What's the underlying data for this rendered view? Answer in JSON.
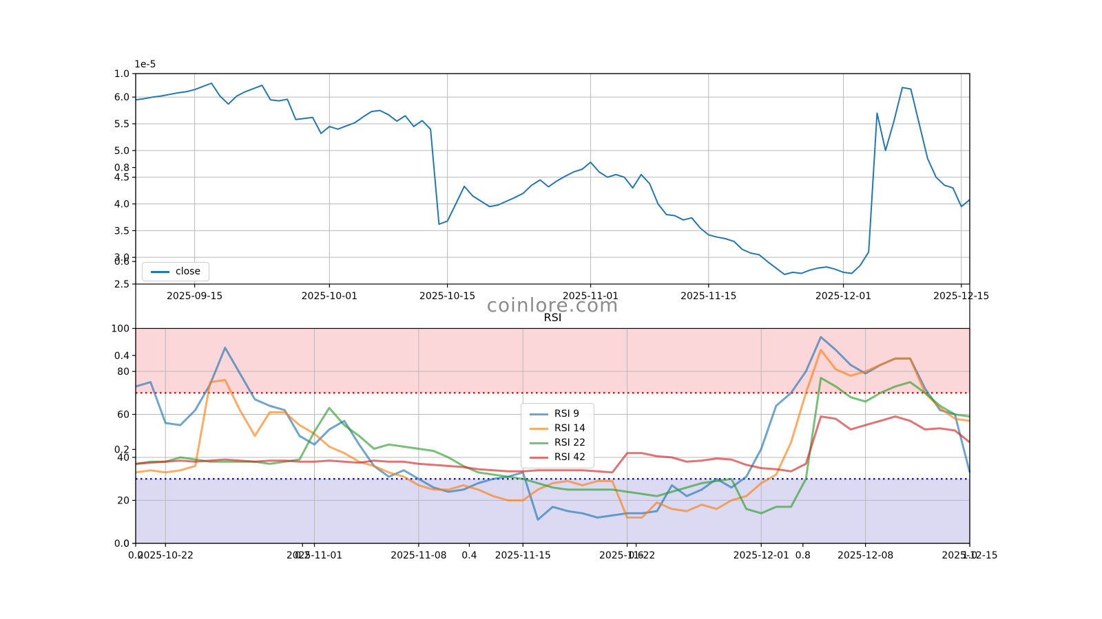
{
  "figure": {
    "watermark": "coinlore.com",
    "background": "#ffffff"
  },
  "price_panel": {
    "offset_label": "1e-5",
    "legend_label": "close",
    "y_tick_labels": [
      "6.0",
      "5.5",
      "5.0",
      "4.5",
      "4.0",
      "3.5",
      "3.0",
      "2.5"
    ],
    "x_tick_labels": [
      "2025-09-15",
      "2025-10-01",
      "2025-10-15",
      "2025-11-01",
      "2025-11-15",
      "2025-12-01",
      "2025-12-15"
    ]
  },
  "rsi_panel": {
    "title": "RSI",
    "legend": [
      "RSI 9",
      "RSI 14",
      "RSI 22",
      "RSI 42"
    ],
    "y_tick_labels": [
      "100",
      "80",
      "60",
      "40",
      "20",
      "0"
    ],
    "x_tick_labels": [
      "2025-10-22",
      "2025-11-01",
      "2025-11-08",
      "2025-11-15",
      "2025-11-22",
      "2025-12-01",
      "2025-12-08",
      "2025-12-15"
    ]
  },
  "overlay_axis": {
    "y_tick_labels": [
      "1.0",
      "0.8",
      "0.6",
      "0.4",
      "0.2",
      "0.0"
    ],
    "x_tick_labels": [
      "0.0",
      "0.2",
      "0.4",
      "0.6",
      "0.8",
      "1.0"
    ]
  },
  "colors": {
    "close_line": "#1f77b4",
    "rsi_9": "#1f77b4",
    "rsi_14": "#ff7f0e",
    "rsi_22": "#2ca02c",
    "rsi_42": "#d62728",
    "overbought_band": "#fbd7da",
    "oversold_band": "#dbdaf2",
    "overbought_line": "#e00000",
    "oversold_line": "#0000dd",
    "grid": "#b8b8b8",
    "spine": "#000000",
    "watermark": "#8c8c8c"
  },
  "chart_data": [
    {
      "type": "line",
      "title": "",
      "unit_offset": "1e-5",
      "x_start": "2025-09-08",
      "x_freq": "daily",
      "ylim": [
        2.5,
        6.44
      ],
      "yticks": [
        6.0,
        5.5,
        5.0,
        4.5,
        4.0,
        3.5,
        3.0,
        2.5
      ],
      "xticks": [
        "2025-09-15",
        "2025-10-01",
        "2025-10-15",
        "2025-11-01",
        "2025-11-15",
        "2025-12-01",
        "2025-12-15"
      ],
      "grid": true,
      "legend_position": "lower left",
      "series": [
        {
          "name": "close",
          "color": "#1f77b4",
          "values": [
            5.95,
            5.97,
            6.0,
            6.02,
            6.05,
            6.08,
            6.1,
            6.14,
            6.2,
            6.26,
            6.02,
            5.87,
            6.02,
            6.1,
            6.16,
            6.22,
            5.95,
            5.93,
            5.96,
            5.58,
            5.6,
            5.62,
            5.32,
            5.45,
            5.4,
            5.46,
            5.52,
            5.63,
            5.73,
            5.75,
            5.67,
            5.55,
            5.65,
            5.45,
            5.56,
            5.4,
            3.62,
            3.68,
            4.0,
            4.33,
            4.15,
            4.05,
            3.95,
            3.98,
            4.05,
            4.12,
            4.2,
            4.35,
            4.45,
            4.32,
            4.43,
            4.52,
            4.6,
            4.65,
            4.78,
            4.6,
            4.5,
            4.55,
            4.5,
            4.3,
            4.55,
            4.38,
            4.0,
            3.8,
            3.78,
            3.7,
            3.74,
            3.55,
            3.42,
            3.38,
            3.35,
            3.3,
            3.15,
            3.08,
            3.05,
            2.92,
            2.8,
            2.68,
            2.72,
            2.7,
            2.76,
            2.8,
            2.82,
            2.78,
            2.72,
            2.7,
            2.85,
            3.1,
            5.7,
            5.0,
            5.55,
            6.18,
            6.15,
            5.5,
            4.85,
            4.5,
            4.35,
            4.3,
            3.95,
            4.08
          ]
        }
      ]
    },
    {
      "type": "line",
      "title": "RSI",
      "x_start": "2025-10-20",
      "x_freq": "daily",
      "ylim": [
        0,
        100
      ],
      "yticks": [
        100,
        80,
        60,
        40,
        20,
        0
      ],
      "xticks": [
        "2025-10-22",
        "2025-11-01",
        "2025-11-08",
        "2025-11-15",
        "2025-11-22",
        "2025-12-01",
        "2025-12-08",
        "2025-12-15"
      ],
      "grid": true,
      "legend_position": "center",
      "bands": [
        {
          "name": "overbought",
          "range": [
            70,
            100
          ],
          "color": "#fbd7da"
        },
        {
          "name": "oversold",
          "range": [
            0,
            30
          ],
          "color": "#dbdaf2"
        }
      ],
      "hlines": [
        {
          "y": 70,
          "style": "dotted",
          "color": "#e00000"
        },
        {
          "y": 30,
          "style": "dotted",
          "color": "#0000dd"
        }
      ],
      "series": [
        {
          "name": "RSI 9",
          "color": "#1f77b4",
          "values": [
            73,
            75,
            56,
            55,
            62,
            74,
            91,
            79,
            67,
            64,
            62,
            50,
            46,
            53,
            57,
            46,
            36,
            31,
            34,
            30,
            26,
            24,
            25,
            28,
            30,
            31,
            33,
            11,
            17,
            15,
            14,
            12,
            13,
            14,
            14,
            15,
            27,
            22,
            25,
            30,
            26,
            31,
            44,
            64,
            70,
            80,
            96,
            90,
            83,
            79,
            83,
            86,
            86,
            72,
            62,
            60,
            33
          ]
        },
        {
          "name": "RSI 14",
          "color": "#ff7f0e",
          "values": [
            33,
            34,
            33,
            34,
            36,
            75,
            76,
            62,
            50,
            61,
            61,
            55,
            51,
            45,
            42,
            38,
            36,
            33,
            31,
            27,
            25,
            25,
            27,
            25,
            22,
            20,
            20,
            25,
            28,
            29,
            27,
            29,
            29,
            12,
            12,
            19,
            16,
            15,
            18,
            16,
            20,
            22,
            28,
            32,
            47,
            70,
            90,
            81,
            78,
            80,
            83,
            86,
            86,
            70,
            63,
            58,
            57
          ]
        },
        {
          "name": "RSI 22",
          "color": "#2ca02c",
          "values": [
            37,
            38,
            38,
            40,
            39,
            38,
            38,
            38,
            38,
            37,
            38,
            39,
            52,
            63,
            55,
            50,
            44,
            46,
            45,
            44,
            43,
            40,
            36,
            33,
            32,
            31,
            30,
            28,
            26,
            25,
            25,
            25,
            25,
            24,
            23,
            22,
            24,
            26,
            28,
            29,
            30,
            16,
            14,
            17,
            17,
            30,
            77,
            73,
            68,
            66,
            70,
            73,
            75,
            70,
            64,
            60,
            59
          ]
        },
        {
          "name": "RSI 42",
          "color": "#d62728",
          "values": [
            37,
            37.5,
            38,
            38.5,
            38,
            38.5,
            39,
            38.5,
            38,
            38.5,
            38.5,
            38,
            38,
            38.5,
            38,
            37.5,
            38.5,
            38,
            38,
            37,
            36.5,
            36,
            35.5,
            34.5,
            34,
            33.5,
            33.5,
            34,
            34,
            34,
            34,
            33.5,
            33,
            42,
            42,
            40.5,
            40,
            38,
            38.5,
            39.5,
            39,
            36.5,
            35,
            34.5,
            33.5,
            37,
            59,
            58,
            53,
            55,
            57,
            59,
            57,
            53,
            53.5,
            52.5,
            47
          ]
        }
      ]
    }
  ]
}
